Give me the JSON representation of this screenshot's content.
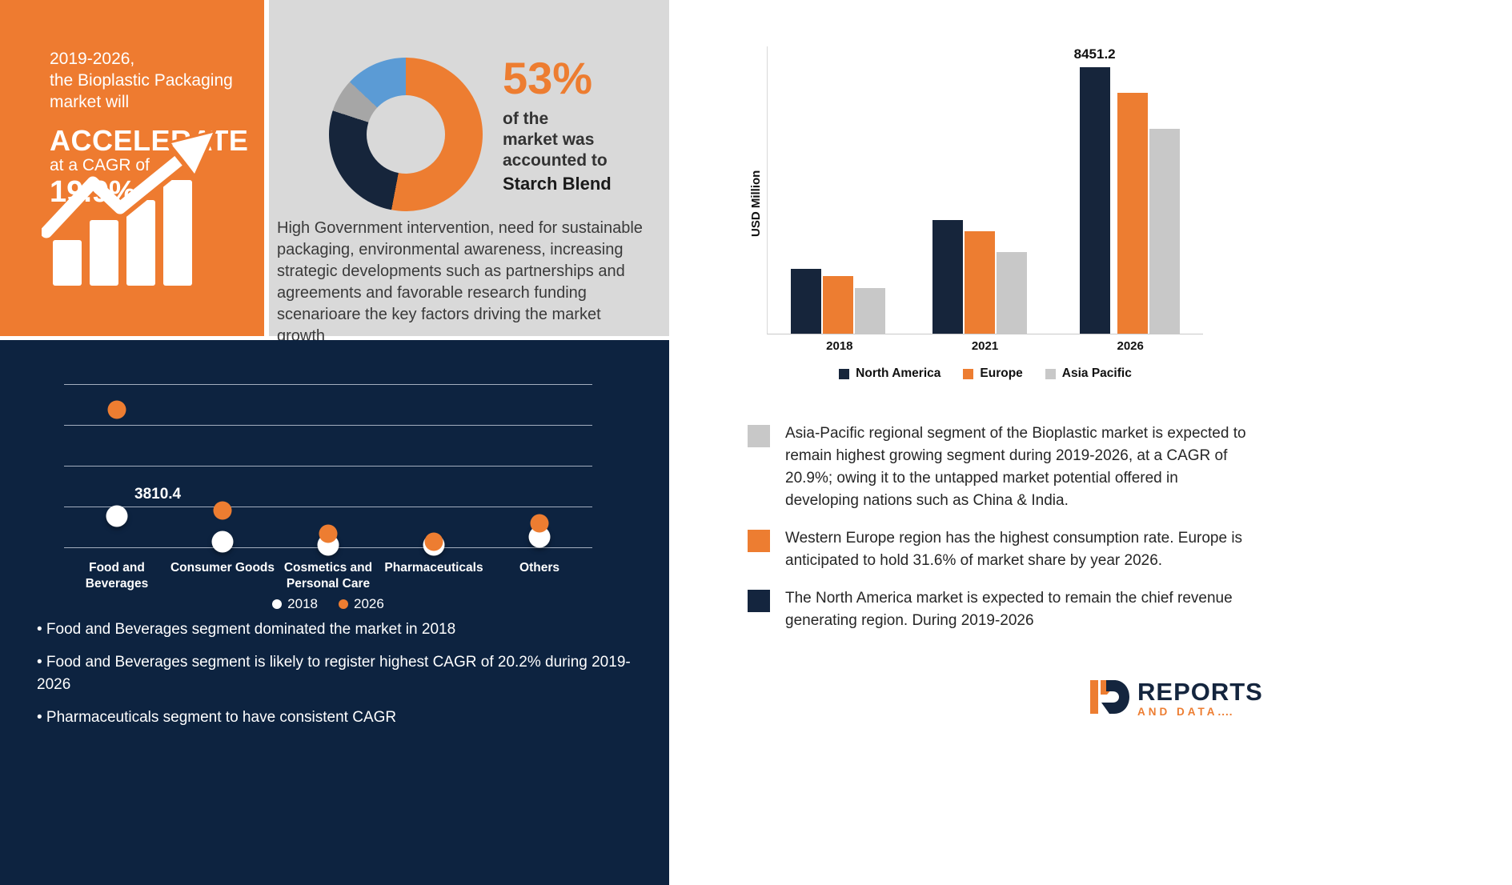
{
  "palette": {
    "orange": "#EE7B30",
    "navy": "#0D2340",
    "panel_gray": "#D9D9D9",
    "series_gray": "#C8C8C8",
    "donut_blue": "#5B9BD5",
    "donut_gray": "#A6A6A6"
  },
  "cagr_panel": {
    "intro": "2019-2026,\nthe Bioplastic Packaging\nmarket will",
    "accelerate": "ACCELERATE",
    "cagr_prefix": "at a CAGR of",
    "cagr_value": "19.9%"
  },
  "starch_panel": {
    "headline": "53%",
    "caption": "of the\nmarket was\naccounted to",
    "caption_bold": "Starch Blend",
    "drivers_text": "High Government intervention, need for sustainable packaging, environmental awareness, increasing strategic developments such as partnerships and agreements and  favorable research funding scenarioare the key factors driving the  market growth"
  },
  "segment_panel": {
    "bullets": [
      "• Food and Beverages  segment dominated the market in 2018",
      "• Food and Beverages segment is likely to register highest CAGR of 20.2% during 2019-2026",
      "• Pharmaceuticals segment to have consistent CAGR"
    ]
  },
  "regional_panel": {
    "insights": [
      {
        "color": "#C8C8C8",
        "text": "Asia-Pacific regional segment of the Bioplastic market is expected to remain highest growing segment during 2019-2026, at a CAGR of 20.9%; owing it to the untapped market potential offered in developing nations such as China & India."
      },
      {
        "color": "#ED7D31",
        "text": "Western Europe region has the highest consumption rate. Europe is anticipated to hold 31.6% of market share by year 2026."
      },
      {
        "color": "#14253E",
        "text": "The North America market  is expected to remain the chief revenue generating region. During 2019-2026"
      }
    ]
  },
  "logo": {
    "name_top": "REPORTS",
    "name_bottom": "AND DATA",
    "dots": "...."
  },
  "chart_data": [
    {
      "id": "starch-donut",
      "type": "pie",
      "labels": [
        "Starch Blend",
        "",
        "",
        ""
      ],
      "values": [
        53,
        27,
        7,
        13
      ],
      "colors": [
        "#ED7D31",
        "#16253B",
        "#A6A6A6",
        "#5B9BD5"
      ],
      "annotation": "53% of the market was accounted to Starch Blend"
    },
    {
      "id": "segment-scatter",
      "type": "scatter",
      "categories": [
        "Food and\nBeverages",
        "Consumer Goods",
        "Cosmetics and\nPersonal Care",
        "Pharmaceuticals",
        "Others"
      ],
      "series": [
        {
          "name": "2018",
          "color": "#FFFFFF",
          "values": [
            3810.4,
            700,
            300,
            250,
            1300
          ]
        },
        {
          "name": "2026",
          "color": "#ED7D31",
          "values": [
            16900,
            4500,
            1700,
            650,
            2900
          ]
        }
      ],
      "ylim": [
        0,
        20000
      ],
      "gridlines": 5,
      "point_label": {
        "series": "2018",
        "category_index": 0,
        "text": "3810.4"
      },
      "legend_position": "bottom"
    },
    {
      "id": "regional-bar",
      "type": "bar",
      "categories": [
        "2018",
        "2021",
        "2026"
      ],
      "series": [
        {
          "name": "North America",
          "color": "#16253B",
          "values": [
            2020,
            3550,
            8451.2
          ]
        },
        {
          "name": "Europe",
          "color": "#ED7D31",
          "values": [
            1815,
            3200,
            7540
          ]
        },
        {
          "name": "Asia Pacific",
          "color": "#C8C8C8",
          "values": [
            1420,
            2550,
            6430
          ]
        }
      ],
      "ylabel": "USD Million",
      "ylim": [
        0,
        9000
      ],
      "bar_label": {
        "series": "North America",
        "category": "2026",
        "text": "8451.2"
      },
      "legend_position": "bottom"
    }
  ]
}
